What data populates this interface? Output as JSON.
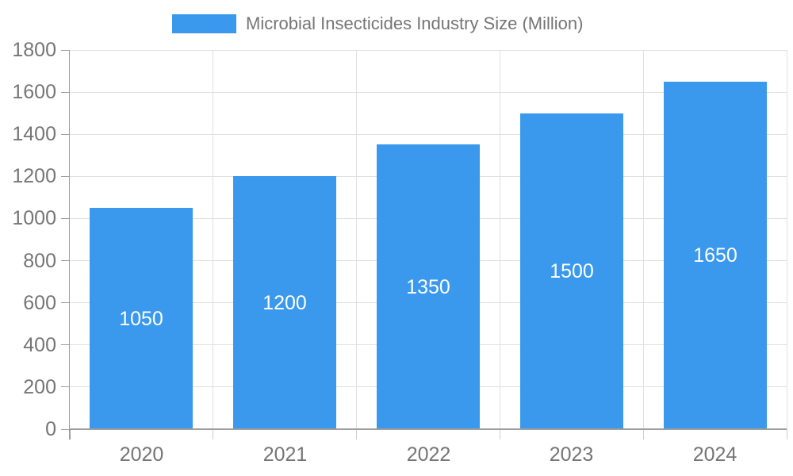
{
  "legend": {
    "series_label": "Microbial Insecticides Industry Size (Million)"
  },
  "chart_data": {
    "type": "bar",
    "title": "Microbial Insecticides Industry Size (Million)",
    "categories": [
      "2020",
      "2021",
      "2022",
      "2023",
      "2024"
    ],
    "values": [
      1050,
      1200,
      1350,
      1500,
      1650
    ],
    "xlabel": "",
    "ylabel": "",
    "ylim": [
      0,
      1800
    ],
    "ytick_step": 200,
    "ytick_labels": [
      "0",
      "200",
      "400",
      "600",
      "800",
      "1000",
      "1200",
      "1400",
      "1600",
      "1800"
    ],
    "bar_value_labels": [
      "1050",
      "1200",
      "1350",
      "1500",
      "1650"
    ],
    "grid": true,
    "legend_position": "top",
    "colors": {
      "bar": "#3A99EC",
      "bar_label": "#FFFFFF",
      "axis": "#9E9E9E",
      "gridline": "#E0E0E0",
      "boundary_tick": "#CFCFCF",
      "text": "#757575"
    }
  }
}
